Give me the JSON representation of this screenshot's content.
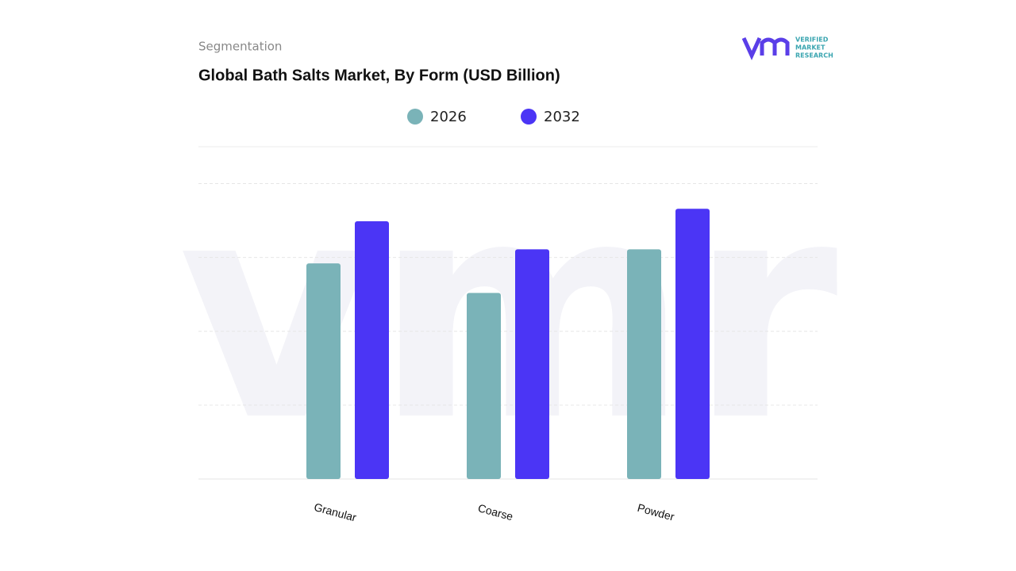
{
  "chart_data": {
    "type": "bar",
    "subtitle": "Segmentation",
    "title": "Global Bath Salts Market, By Form (USD Billion)",
    "categories": [
      "Granular",
      "Coarse",
      "Powder"
    ],
    "series": [
      {
        "name": "2026",
        "color": "#7ab3b8",
        "values": [
          2.92,
          2.52,
          3.11
        ]
      },
      {
        "name": "2032",
        "color": "#4b35f5",
        "values": [
          3.49,
          3.11,
          3.66
        ]
      }
    ],
    "ylim": [
      0,
      4.5
    ],
    "yticks": [
      0,
      1,
      2,
      3,
      4
    ],
    "grid": true,
    "tick_labels": false,
    "legend": "top"
  },
  "logo": {
    "line1": "VERIFIED",
    "line2": "MARKET",
    "line3": "RESEARCH"
  }
}
